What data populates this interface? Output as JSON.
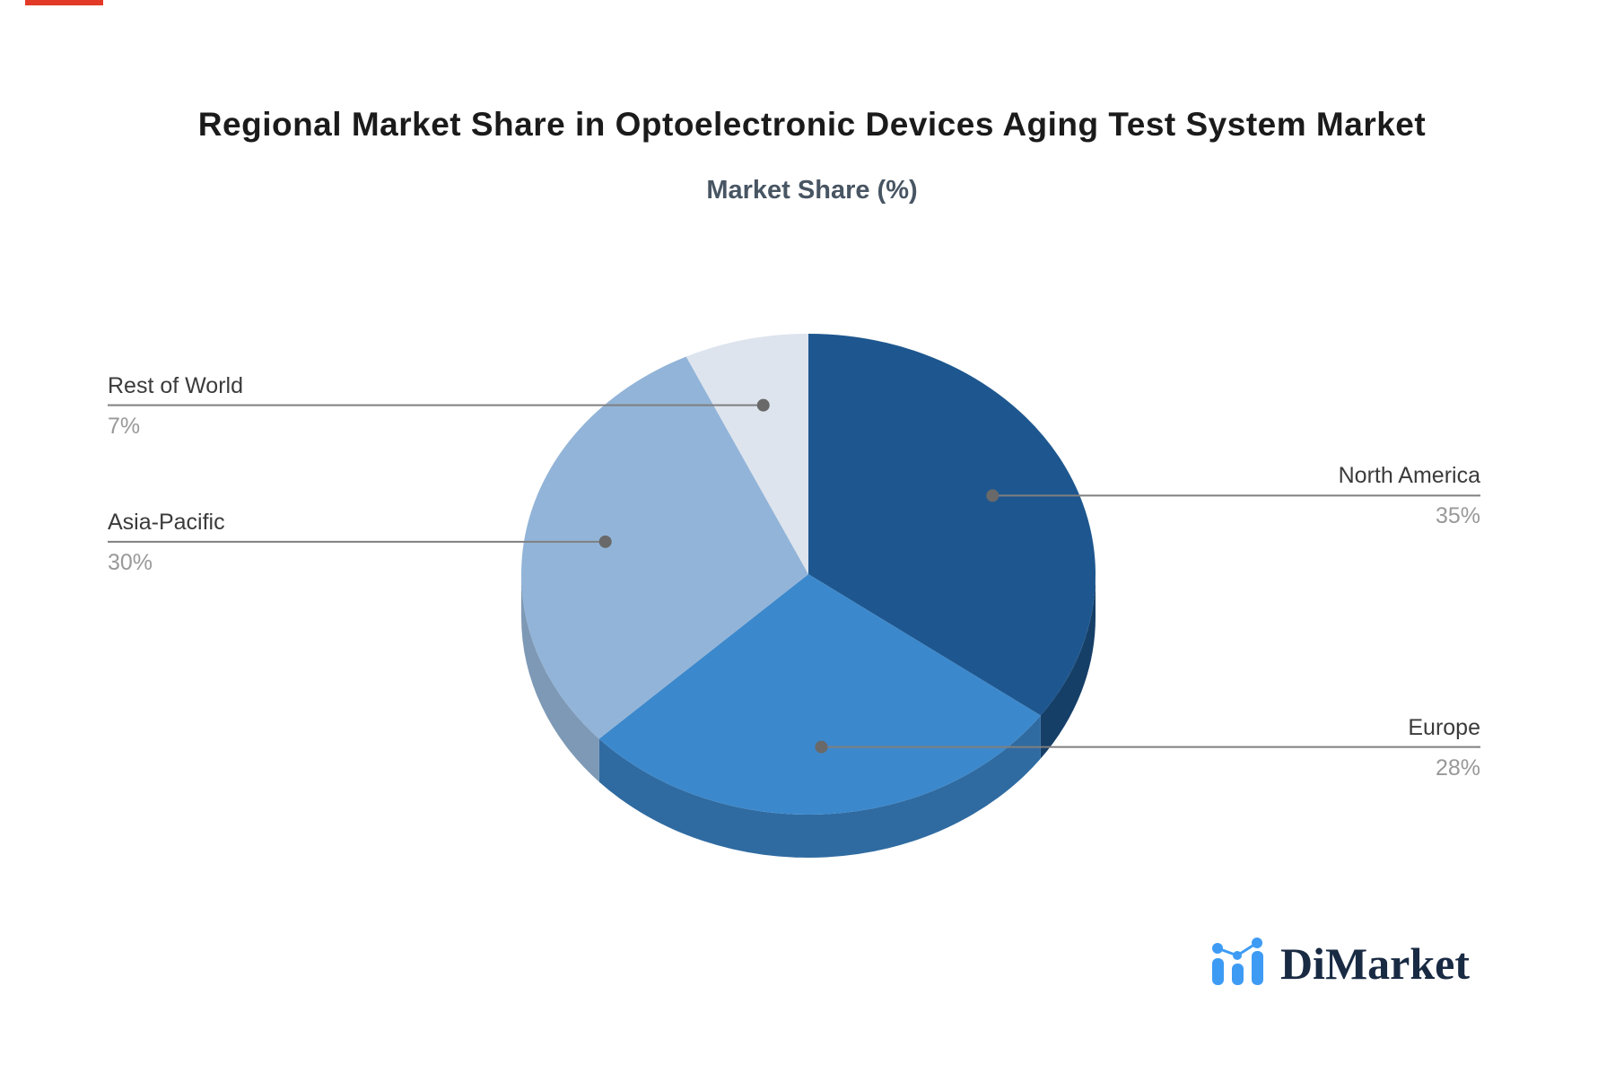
{
  "header": {
    "title": "Regional Market Share in Optoelectronic Devices Aging Test System Market",
    "subtitle": "Market Share (%)"
  },
  "chart_data": {
    "type": "pie",
    "title": "Regional Market Share in Optoelectronic Devices Aging Test System Market",
    "subtitle": "Market Share (%)",
    "unit": "%",
    "start_angle_deg": 0,
    "clockwise": true,
    "effect_3d": true,
    "slices": [
      {
        "label": "North America",
        "value": 35,
        "pct": "35%",
        "color": "#1e578f",
        "side_color": "#163f68"
      },
      {
        "label": "Europe",
        "value": 28,
        "pct": "28%",
        "color": "#3c88cc",
        "side_color": "#2f6ba1"
      },
      {
        "label": "Asia-Pacific",
        "value": 30,
        "pct": "30%",
        "color": "#92b4d8",
        "side_color": "#7e99b5"
      },
      {
        "label": "Rest of World",
        "value": 7,
        "pct": "7%",
        "color": "#dde4ee",
        "side_color": "#c9d4e2"
      }
    ],
    "legend_position": "callout-labels",
    "style": {
      "title_color": "#1b1b1b",
      "subtitle_color": "#485563",
      "label_color": "#3b3b3b",
      "pct_color": "#999999",
      "leader_line_color": "#7f7f7f",
      "leader_dot_color": "#696969"
    }
  },
  "brand": {
    "name": "DiMarket",
    "icon": "bar-chart-trend-icon",
    "text_color": "#192a43",
    "icon_color": "#3e9bf4"
  }
}
